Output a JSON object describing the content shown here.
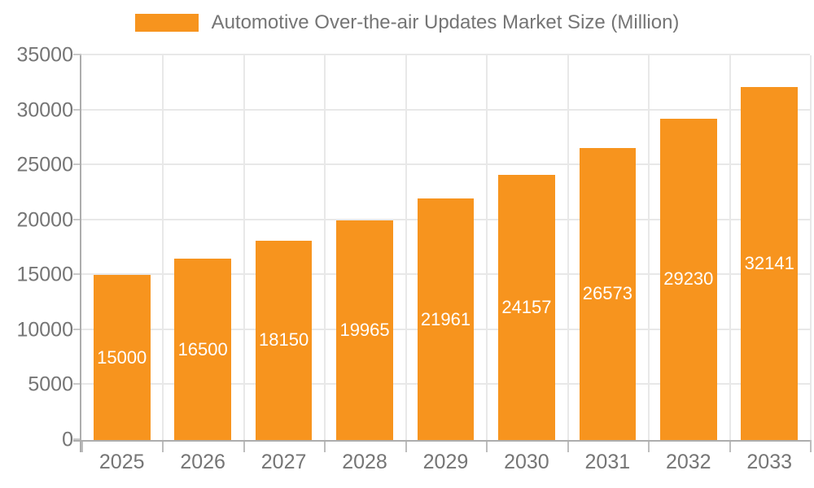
{
  "chart_data": {
    "type": "bar",
    "title": "Automotive Over-the-air Updates Market Size (Million)",
    "categories": [
      "2025",
      "2026",
      "2027",
      "2028",
      "2029",
      "2030",
      "2031",
      "2032",
      "2033"
    ],
    "values": [
      15000,
      16500,
      18150,
      19965,
      21961,
      24157,
      26573,
      29230,
      32141
    ],
    "series": [
      {
        "name": "Automotive Over-the-air Updates Market Size (Million)",
        "values": [
          15000,
          16500,
          18150,
          19965,
          21961,
          24157,
          26573,
          29230,
          32141
        ]
      }
    ],
    "xlabel": "",
    "ylabel": "",
    "ylim": [
      0,
      35000
    ],
    "yticks": [
      0,
      5000,
      10000,
      15000,
      20000,
      25000,
      30000,
      35000
    ],
    "grid": true,
    "legend_position": "top",
    "value_labels": "inside-center",
    "colors": {
      "bar": "#F7941E",
      "value_label": "#FFFFFF",
      "axis_label": "#757575",
      "gridline": "#E8E8E8",
      "axis_line": "#ADADAD",
      "background": "#FFFFFF"
    }
  }
}
